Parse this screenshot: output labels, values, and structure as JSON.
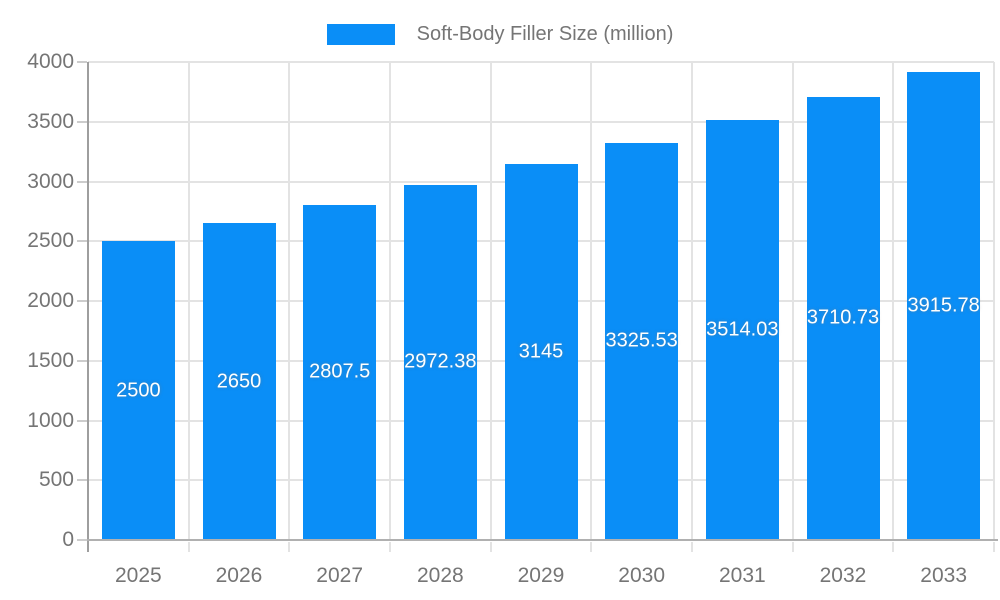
{
  "chart_data": {
    "type": "bar",
    "series_name": "Soft-Body Filler Size (million)",
    "categories": [
      "2025",
      "2026",
      "2027",
      "2028",
      "2029",
      "2030",
      "2031",
      "2032",
      "2033"
    ],
    "values": [
      2500,
      2650,
      2807.5,
      2972.38,
      3145,
      3325.53,
      3514.03,
      3710.73,
      3915.78
    ],
    "title": "",
    "xlabel": "",
    "ylabel": "",
    "ylim": [
      0,
      4000
    ],
    "ytick_step": 500,
    "yticks": [
      0,
      500,
      1000,
      1500,
      2000,
      2500,
      3000,
      3500,
      4000
    ],
    "grid": true,
    "legend_position": "top",
    "value_labels_position": "inside-center",
    "colors": {
      "bar": "#0A8EF7",
      "value_text": "#FFFFFF",
      "legend_text": "#757575",
      "axis_text": "#757575",
      "gridline": "#E3E3E3",
      "tick": "#CCCCCC",
      "y_axis_line": "#9E9E9E",
      "x_axis_line": "#B0B0B0"
    }
  }
}
